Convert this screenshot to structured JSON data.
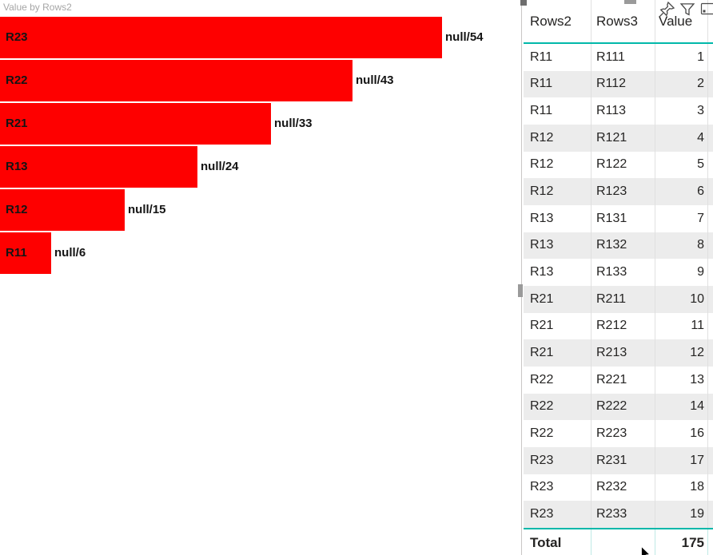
{
  "chart_data": [
    {
      "type": "bar",
      "orientation": "horizontal",
      "title": "Value by Rows2",
      "categories": [
        "R23",
        "R22",
        "R21",
        "R13",
        "R12",
        "R11"
      ],
      "values": [
        54,
        43,
        33,
        24,
        15,
        6
      ],
      "data_labels": [
        "null/54",
        "null/43",
        "null/33",
        "null/24",
        "null/15",
        "null/6"
      ],
      "xlim": [
        0,
        54
      ],
      "bar_color": "#FE0000",
      "grid": false,
      "legend": "none"
    },
    {
      "type": "table",
      "columns": [
        "Rows2",
        "Rows3",
        "Value"
      ],
      "rows": [
        [
          "R11",
          "R111",
          "1"
        ],
        [
          "R11",
          "R112",
          "2"
        ],
        [
          "R11",
          "R113",
          "3"
        ],
        [
          "R12",
          "R121",
          "4"
        ],
        [
          "R12",
          "R122",
          "5"
        ],
        [
          "R12",
          "R123",
          "6"
        ],
        [
          "R13",
          "R131",
          "7"
        ],
        [
          "R13",
          "R132",
          "8"
        ],
        [
          "R13",
          "R133",
          "9"
        ],
        [
          "R21",
          "R211",
          "10"
        ],
        [
          "R21",
          "R212",
          "11"
        ],
        [
          "R21",
          "R213",
          "12"
        ],
        [
          "R22",
          "R221",
          "13"
        ],
        [
          "R22",
          "R222",
          "14"
        ],
        [
          "R22",
          "R223",
          "16"
        ],
        [
          "R23",
          "R231",
          "17"
        ],
        [
          "R23",
          "R232",
          "18"
        ],
        [
          "R23",
          "R233",
          "19"
        ]
      ],
      "total_row": {
        "label": "Total",
        "value": "175"
      }
    }
  ],
  "visual_header": {
    "icons": [
      "pin-icon",
      "filter-icon",
      "focus-mode-icon"
    ]
  },
  "colors": {
    "bar": "#FE0000",
    "accent_teal": "#01B8AA",
    "alt_row_bg": "#ECECEC",
    "title_gray": "#A6A6A6",
    "table_text": "#252423"
  }
}
